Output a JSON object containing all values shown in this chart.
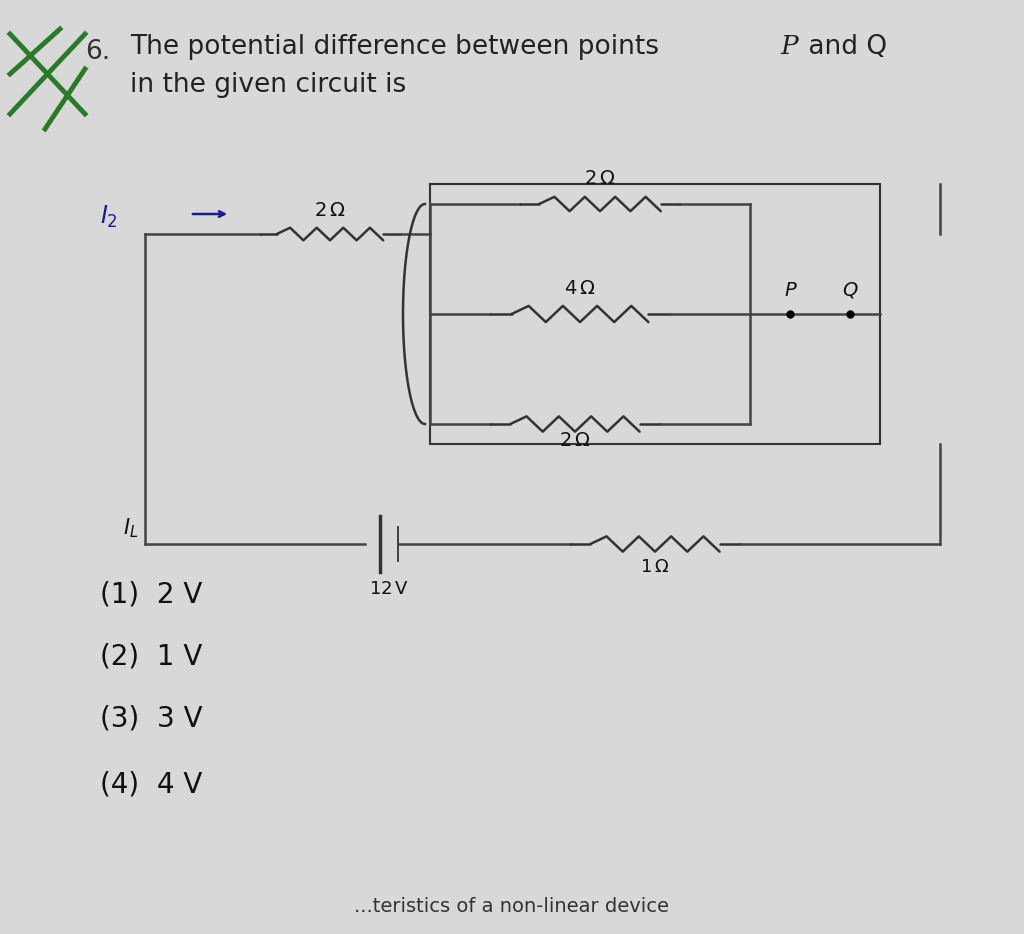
{
  "bg_color": "#d8d8d8",
  "wire_color": "#444444",
  "component_color": "#333333",
  "text_color": "#111111",
  "green_color": "#2a7a2a",
  "title_line1": "The potential difference between points ",
  "title_line1b": "P",
  "title_line1c": " and Q",
  "title_line2": "in the given circuit is",
  "qnum": "6.",
  "options": [
    "(1)  2 V",
    "(2)  1 V",
    "(3)  3 V",
    "(4)  4 V"
  ],
  "bottom_text": "...teristics of a non-linear device"
}
